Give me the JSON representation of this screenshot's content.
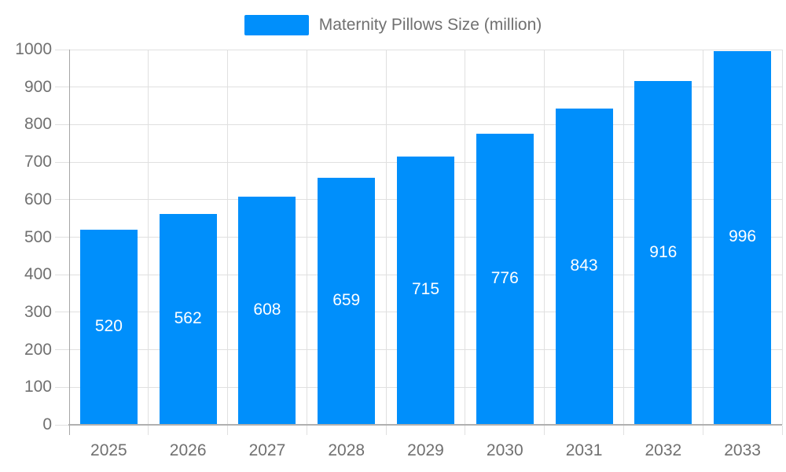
{
  "legend": {
    "marker_color": "#008FFB"
  },
  "chart_data": {
    "type": "bar",
    "title": "",
    "xlabel": "",
    "ylabel": "",
    "categories": [
      "2025",
      "2026",
      "2027",
      "2028",
      "2029",
      "2030",
      "2031",
      "2032",
      "2033"
    ],
    "series": [
      {
        "name": "Maternity Pillows Size (million)",
        "values": [
          520,
          562,
          608,
          659,
          715,
          776,
          843,
          916,
          996
        ]
      }
    ],
    "data_labels": [
      "520",
      "562",
      "608",
      "659",
      "715",
      "776",
      "843",
      "916",
      "996"
    ],
    "ylim": [
      0,
      1000
    ],
    "ytick_step": 100,
    "y_tick_labels": [
      "0",
      "100",
      "200",
      "300",
      "400",
      "500",
      "600",
      "700",
      "800",
      "900",
      "1000"
    ],
    "grid": true,
    "legend_position": "top",
    "colors": {
      "bar": "#008FFB",
      "grid": "#e0e0e0",
      "axis_line": "#a6a6a6",
      "baseline": "#b0b0b0",
      "text": "#707070",
      "data_label": "#ffffff",
      "background": "#ffffff"
    }
  }
}
